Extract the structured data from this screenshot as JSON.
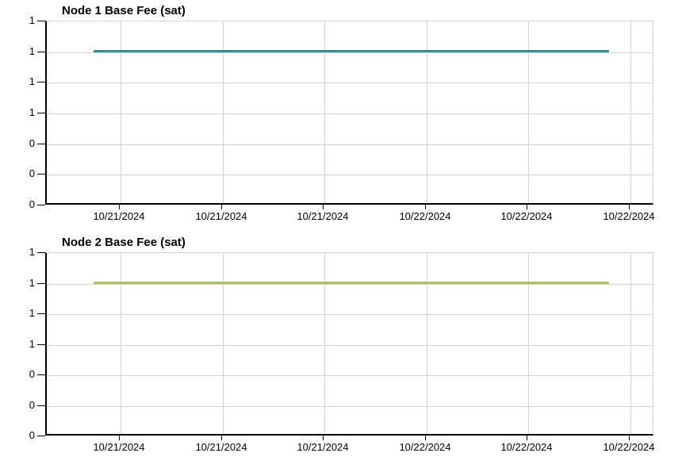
{
  "page": {
    "background_color": "#ffffff",
    "text_color": "#000000",
    "gridline_color": "#d2d2d2",
    "axis_color": "#000000"
  },
  "chart_data": [
    {
      "type": "line",
      "title": "Node 1 Base Fee (sat)",
      "xlabel": "",
      "ylabel": "",
      "x_tick_labels": [
        "10/21/2024",
        "10/21/2024",
        "10/21/2024",
        "10/22/2024",
        "10/22/2024",
        "10/22/2024"
      ],
      "y_tick_labels_top_to_bottom": [
        "1",
        "1",
        "1",
        "1",
        "0",
        "0",
        "0"
      ],
      "ylim": [
        0,
        1.2
      ],
      "grid": "on",
      "legend_position": "none",
      "series": [
        {
          "name": "Node 1 Base Fee (sat)",
          "constant_value": 1,
          "values": [
            1,
            1
          ],
          "color": "#149c9c"
        }
      ]
    },
    {
      "type": "line",
      "title": "Node 2 Base Fee (sat)",
      "xlabel": "",
      "ylabel": "",
      "x_tick_labels": [
        "10/21/2024",
        "10/21/2024",
        "10/21/2024",
        "10/22/2024",
        "10/22/2024",
        "10/22/2024"
      ],
      "y_tick_labels_top_to_bottom": [
        "1",
        "1",
        "1",
        "1",
        "0",
        "0",
        "0"
      ],
      "ylim": [
        0,
        1.2
      ],
      "grid": "on",
      "legend_position": "none",
      "series": [
        {
          "name": "Node 2 Base Fee (sat)",
          "constant_value": 1,
          "values": [
            1,
            1
          ],
          "color": "#a0cf3a"
        }
      ]
    }
  ]
}
